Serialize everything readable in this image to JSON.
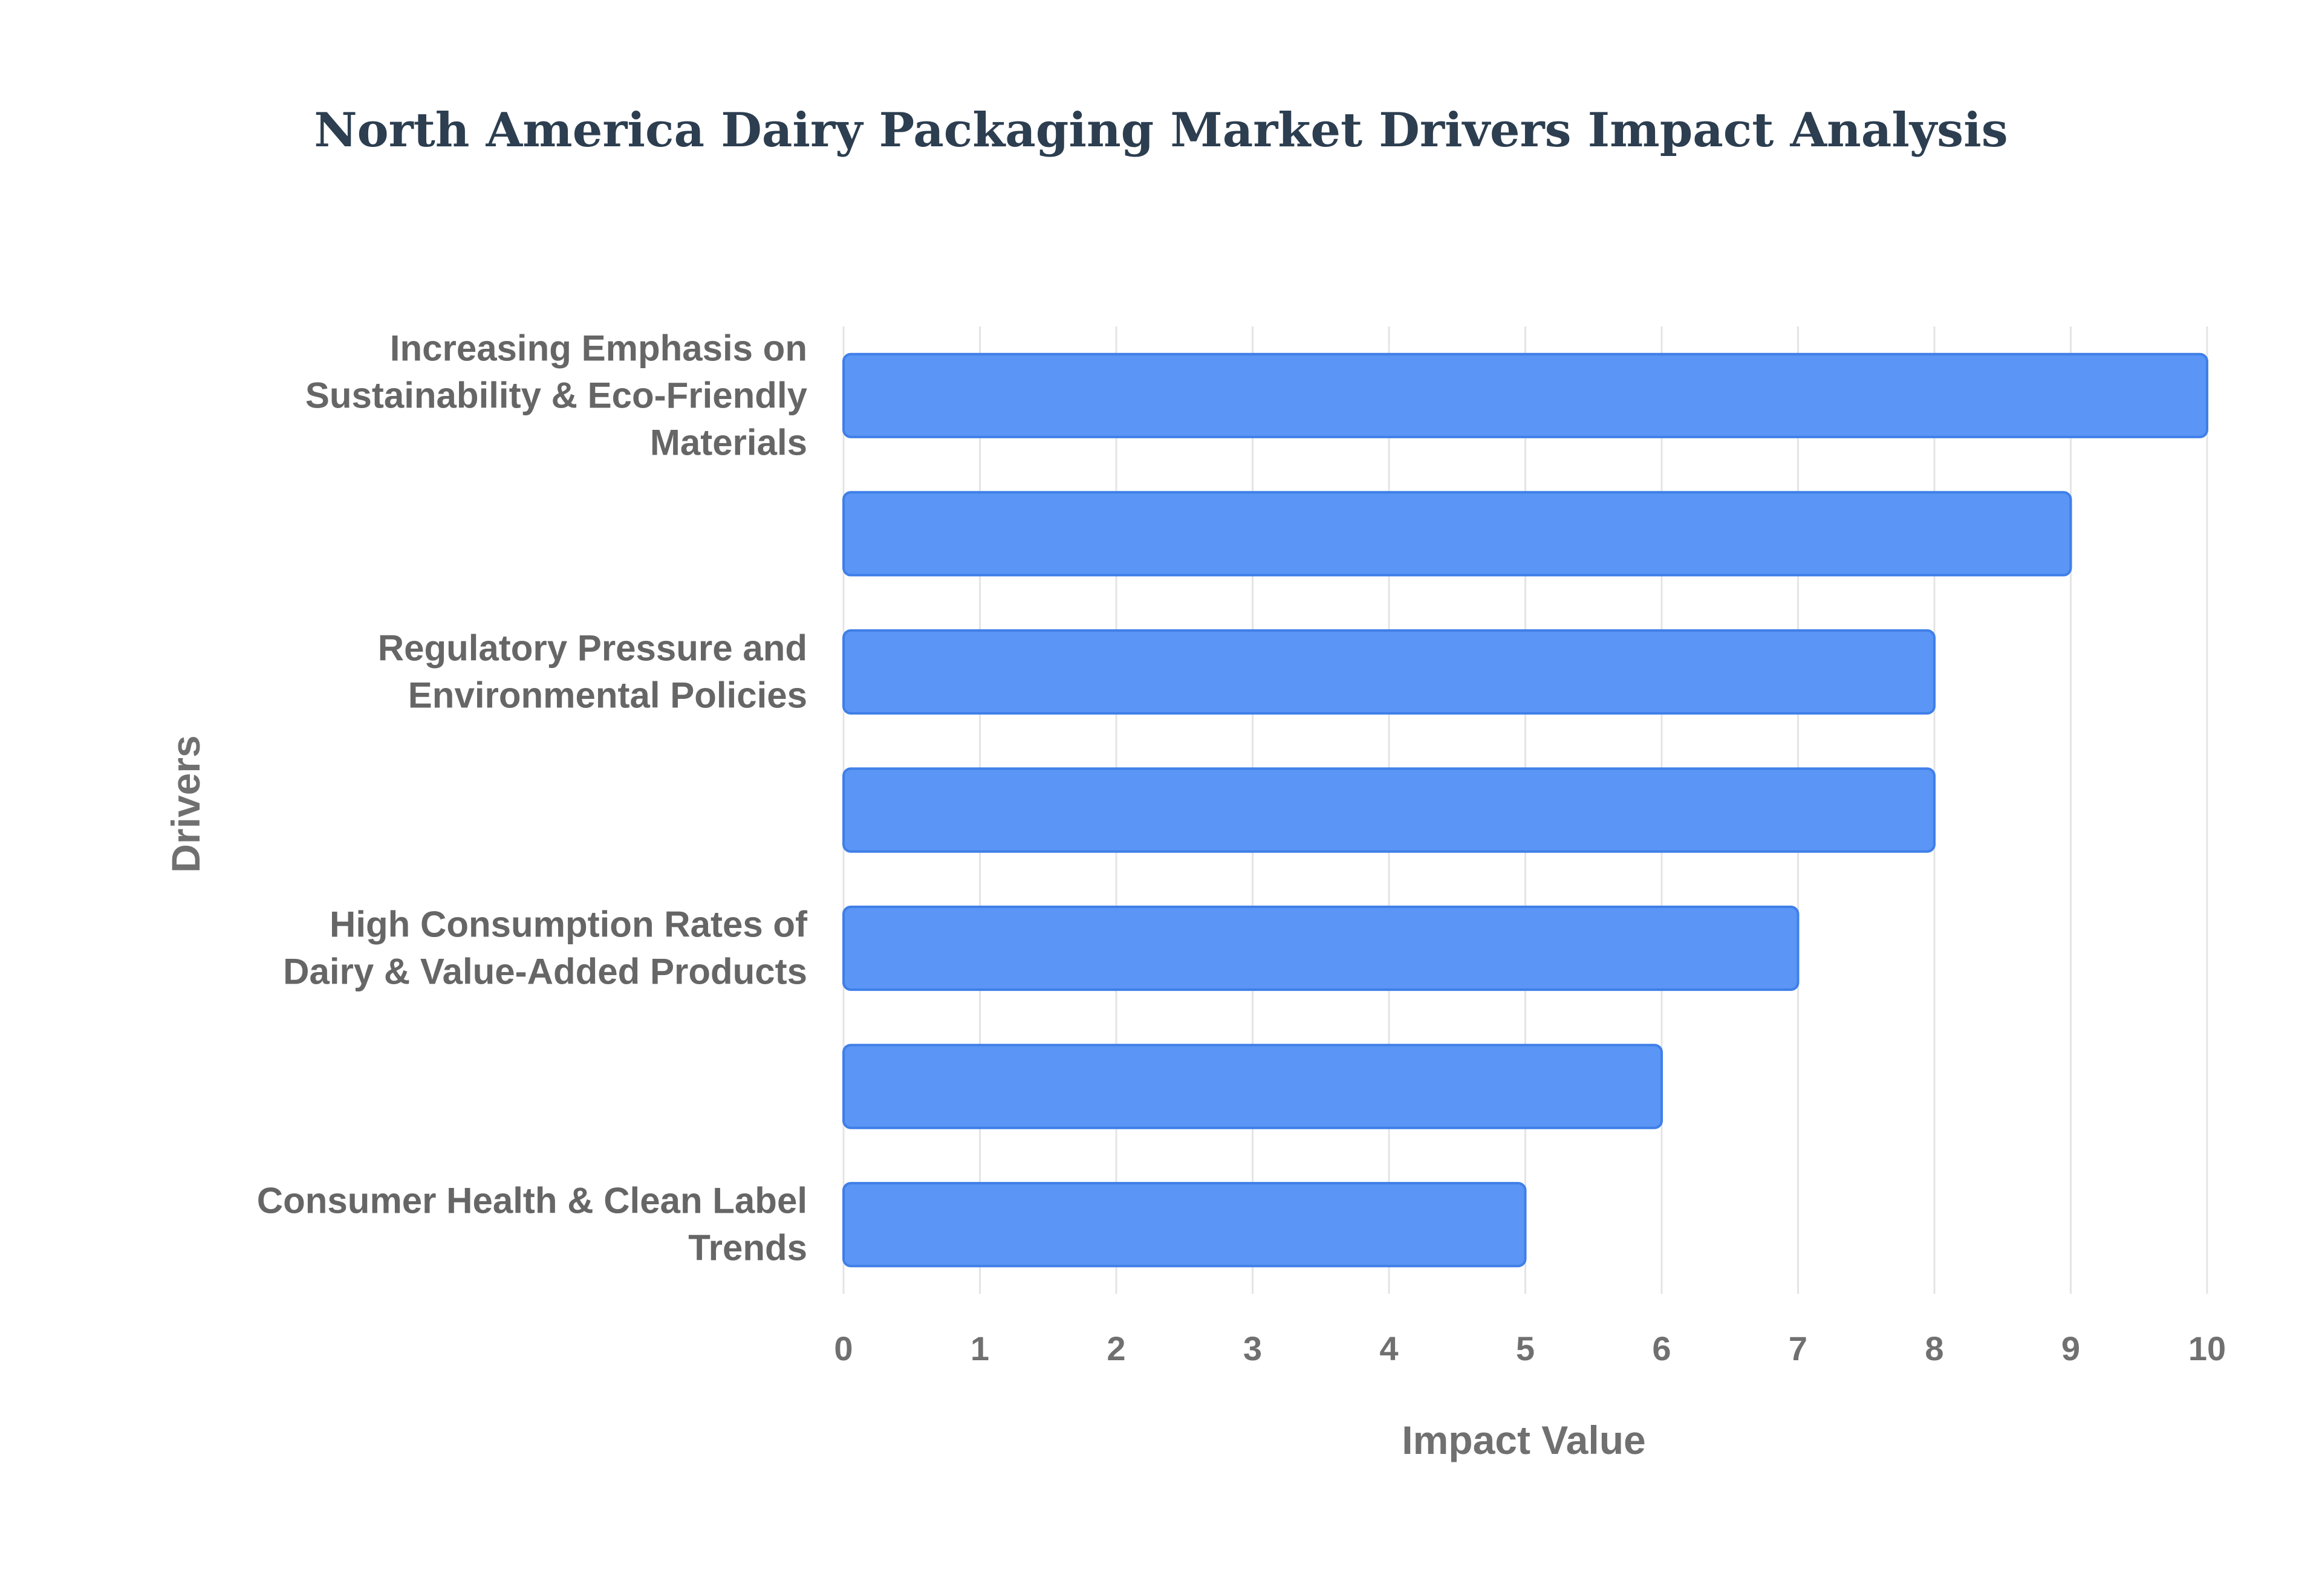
{
  "chart_data": {
    "type": "bar",
    "orientation": "horizontal",
    "title": "North America Dairy Packaging Market Drivers Impact Analysis",
    "xlabel": "Impact Value",
    "ylabel": "Drivers",
    "xlim": [
      0,
      10
    ],
    "xticks": [
      "0",
      "1",
      "2",
      "3",
      "4",
      "5",
      "6",
      "7",
      "8",
      "9",
      "10"
    ],
    "grid": true,
    "colors": {
      "bar": "#5b95f5",
      "bar_border": "#3f7fe8",
      "title": "#2c3e50",
      "text": "#707070"
    },
    "categories": [
      {
        "label": [
          "Increasing Emphasis on",
          "Sustainability & Eco-Friendly",
          "Materials"
        ],
        "value": 10
      },
      {
        "label": [],
        "value": 9
      },
      {
        "label": [
          "Regulatory Pressure and",
          "Environmental Policies"
        ],
        "value": 8
      },
      {
        "label": [],
        "value": 8
      },
      {
        "label": [
          "High Consumption Rates of",
          "Dairy & Value-Added Products"
        ],
        "value": 7
      },
      {
        "label": [],
        "value": 6
      },
      {
        "label": [
          "Consumer Health & Clean Label",
          "Trends"
        ],
        "value": 5
      }
    ]
  }
}
